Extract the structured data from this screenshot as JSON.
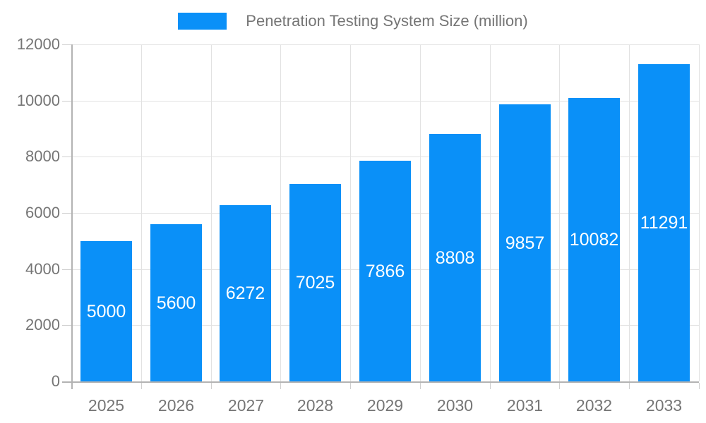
{
  "legend": {
    "label": "Penetration Testing System Size (million)"
  },
  "colors": {
    "bar": "#0A90F8",
    "axis_line": "#b3b3b3",
    "grid_line": "#e2e2e2",
    "tick_mark": "#cfcfcf",
    "axis_text": "#757575",
    "bar_label_text": "#ffffff",
    "background": "#ffffff"
  },
  "chart_data": {
    "type": "bar",
    "title": "",
    "xlabel": "",
    "ylabel": "",
    "series_name": "Penetration Testing System Size (million)",
    "categories": [
      "2025",
      "2026",
      "2027",
      "2028",
      "2029",
      "2030",
      "2031",
      "2032",
      "2033"
    ],
    "values": [
      5000,
      5600,
      6272,
      7025,
      7866,
      8808,
      9857,
      10082,
      11291
    ],
    "ylim": [
      0,
      12000
    ],
    "yticks": [
      0,
      2000,
      4000,
      6000,
      8000,
      10000,
      12000
    ],
    "grid": true,
    "legend_position": "top-center",
    "bar_value_labels": "inside-center-white"
  }
}
